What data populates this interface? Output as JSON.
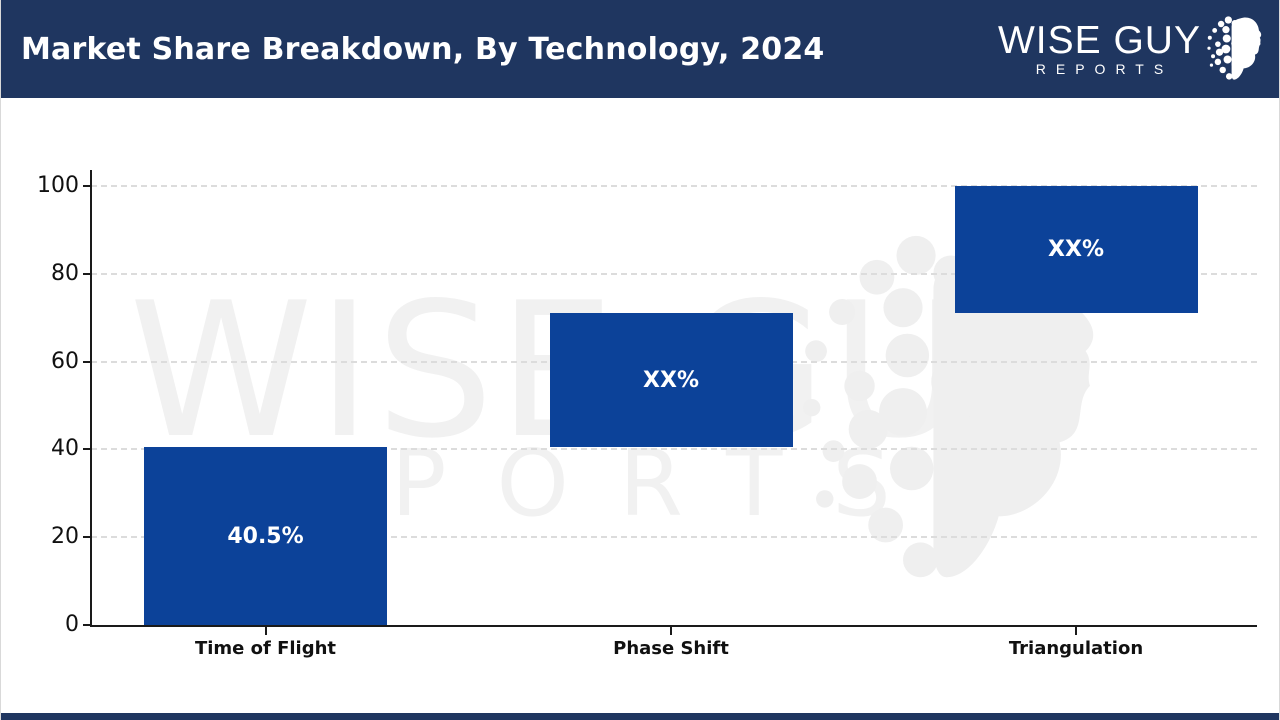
{
  "header": {
    "title": "Market Share Breakdown, By Technology, 2024",
    "background_color": "#1F3660"
  },
  "logo": {
    "wordmark": "WISE GUY",
    "subtext": "REPORTS"
  },
  "watermark": {
    "line1": "WISE GUY",
    "line2": "REPORTS"
  },
  "chart_data": {
    "type": "bar",
    "subtype": "floating-segment-waterfall",
    "title": "Market Share Breakdown, By Technology, 2024",
    "categories": [
      "Time of Flight",
      "Phase Shift",
      "Triangulation"
    ],
    "series": [
      {
        "name": "Time of Flight",
        "start": 0,
        "end": 40.5,
        "value_label": "40.5%"
      },
      {
        "name": "Phase Shift",
        "start": 40.5,
        "end": 71,
        "value_label": "XX%"
      },
      {
        "name": "Triangulation",
        "start": 71,
        "end": 100,
        "value_label": "XX%"
      }
    ],
    "xlabel": "",
    "ylabel": "",
    "ylim": [
      0,
      105
    ],
    "yticks": [
      0,
      20,
      40,
      60,
      80,
      100
    ],
    "grid": "horizontal-dashed",
    "legend": "none",
    "bar_color": "#0C4299",
    "value_label_color": "#FFFFFF",
    "axis_color": "#1A1A1A",
    "gridline_color": "#DCDCDC"
  }
}
